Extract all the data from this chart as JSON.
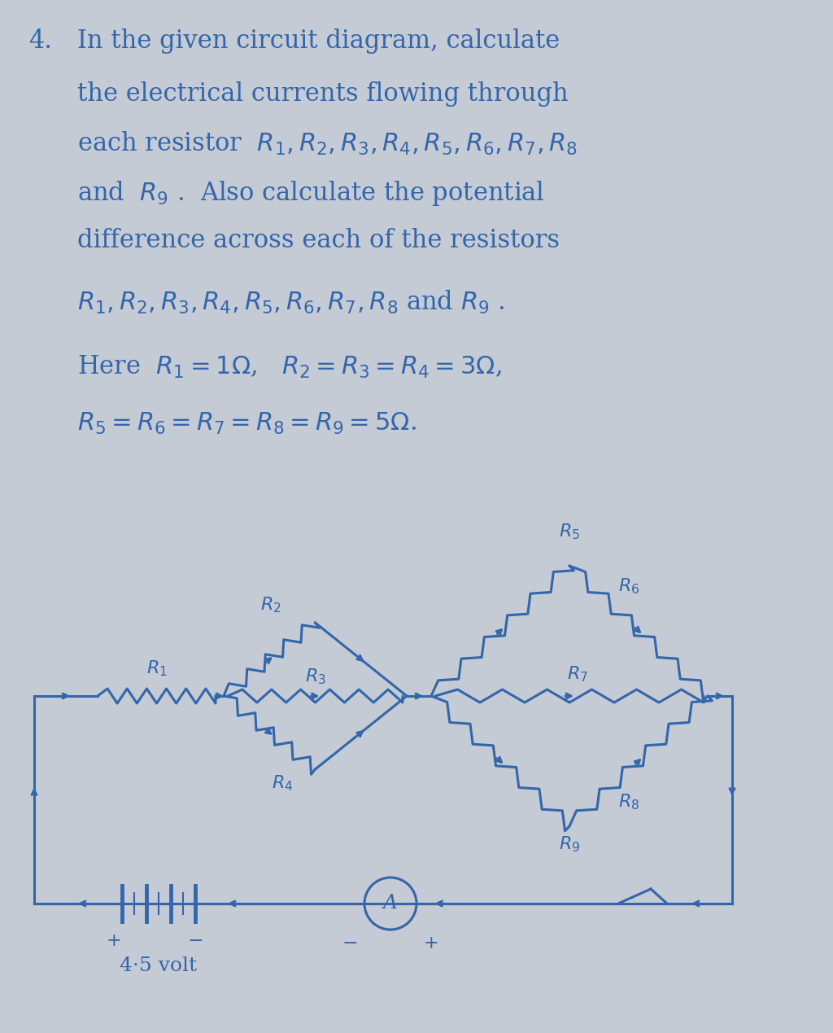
{
  "bg_color": "#c5cbd5",
  "text_color": "#3366aa",
  "line_color": "#3366aa",
  "problem_number": "4.",
  "line1": "In the given circuit diagram, calculate",
  "line2": "the electrical currents flowing through",
  "line3_pre": "each resistor ",
  "line3_math": "$R_1, R_2, R_3, R_4, R_5, R_6, R_7, R_8$",
  "line4_pre": "and ",
  "line4_mid": "$R_9$",
  "line4_suf": " .  Also calculate the potential",
  "line5": "difference across each of the resistors",
  "line6_math": "$R_1, R_2, R_3, R_4, R_5, R_6, R_7, R_8$",
  "line6_suf": " and ",
  "line6_end": "$R_9$ .",
  "line7_pre": "Here ",
  "line7_m1": "$R_1 = 1\\Omega$",
  "line7_m2": "$R_2 = R_3 = R_4 = 3\\Omega$,",
  "line8_math": "$R_5 = R_6 = R_7 = R_8 = R_9 = 5\\Omega$.",
  "voltage_label": "4·5 volt"
}
